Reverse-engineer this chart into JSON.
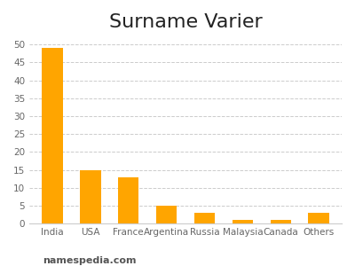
{
  "title": "Surname Varier",
  "categories": [
    "India",
    "USA",
    "France",
    "Argentina",
    "Russia",
    "Malaysia",
    "Canada",
    "Others"
  ],
  "values": [
    49,
    15,
    13,
    5,
    3,
    1,
    1,
    3
  ],
  "bar_color": "#FFA500",
  "ylim": [
    0,
    52
  ],
  "yticks": [
    0,
    5,
    10,
    15,
    20,
    25,
    30,
    35,
    40,
    45,
    50
  ],
  "background_color": "#ffffff",
  "grid_color": "#cccccc",
  "title_fontsize": 16,
  "tick_fontsize": 7.5,
  "footer_text": "namespedia.com",
  "footer_fontsize": 8
}
